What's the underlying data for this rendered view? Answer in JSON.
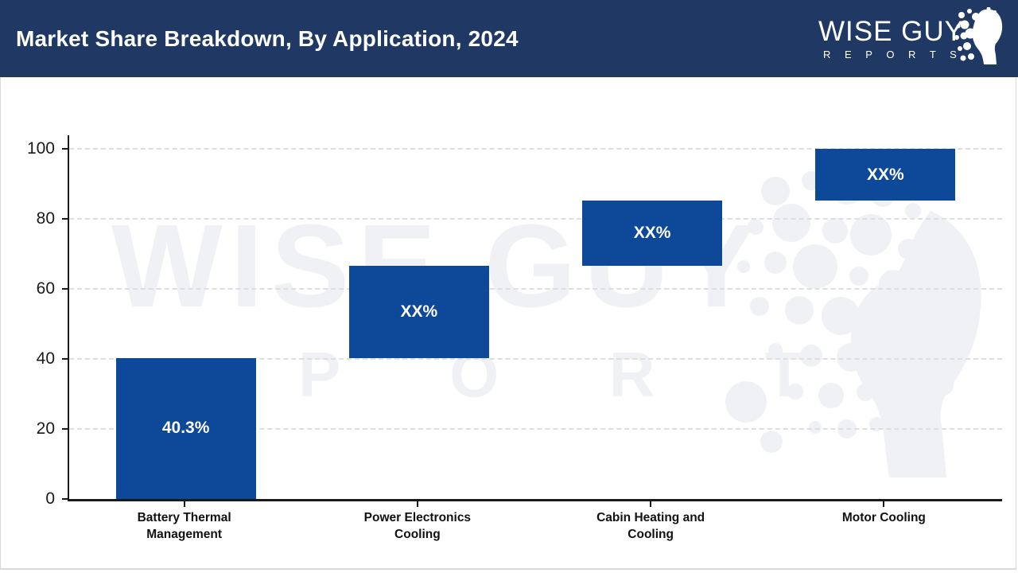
{
  "header": {
    "title": "Market Share Breakdown, By Application, 2024",
    "bg_color": "#1f3864",
    "logo": {
      "line1": "WISE GUY",
      "line2": "R E P O R T S"
    }
  },
  "watermark": {
    "line1": "WISE GUY",
    "line2": "P O R T S",
    "color": "#eff1f4"
  },
  "chart_data": {
    "type": "bar",
    "subtype": "waterfall",
    "title": "Market Share Breakdown, By Application, 2024",
    "categories": [
      "Battery Thermal Management",
      "Power Electronics Cooling",
      "Cabin Heating and Cooling",
      "Motor Cooling"
    ],
    "categories_display": [
      "Battery Thermal\nManagement",
      "Power Electronics\nCooling",
      "Cabin Heating and\nCooling",
      "Motor Cooling"
    ],
    "segments": [
      {
        "category": "Battery Thermal Management",
        "start": 0,
        "end": 40.3,
        "share": 40.3,
        "label": "40.3%"
      },
      {
        "category": "Power Electronics Cooling",
        "start": 40.3,
        "end": 66.5,
        "share": 26.2,
        "label": "XX%"
      },
      {
        "category": "Cabin Heating and Cooling",
        "start": 66.5,
        "end": 85.2,
        "share": 18.7,
        "label": "XX%"
      },
      {
        "category": "Motor Cooling",
        "start": 85.2,
        "end": 100,
        "share": 14.8,
        "label": "XX%"
      }
    ],
    "ylim": [
      0,
      100
    ],
    "yticks": [
      0,
      20,
      40,
      60,
      80,
      100
    ],
    "xlabel": "",
    "ylabel": "",
    "bar_color": "#0d4899",
    "gridline_color": "#dedede",
    "grid": "horizontal-dashed",
    "legend": "none"
  }
}
